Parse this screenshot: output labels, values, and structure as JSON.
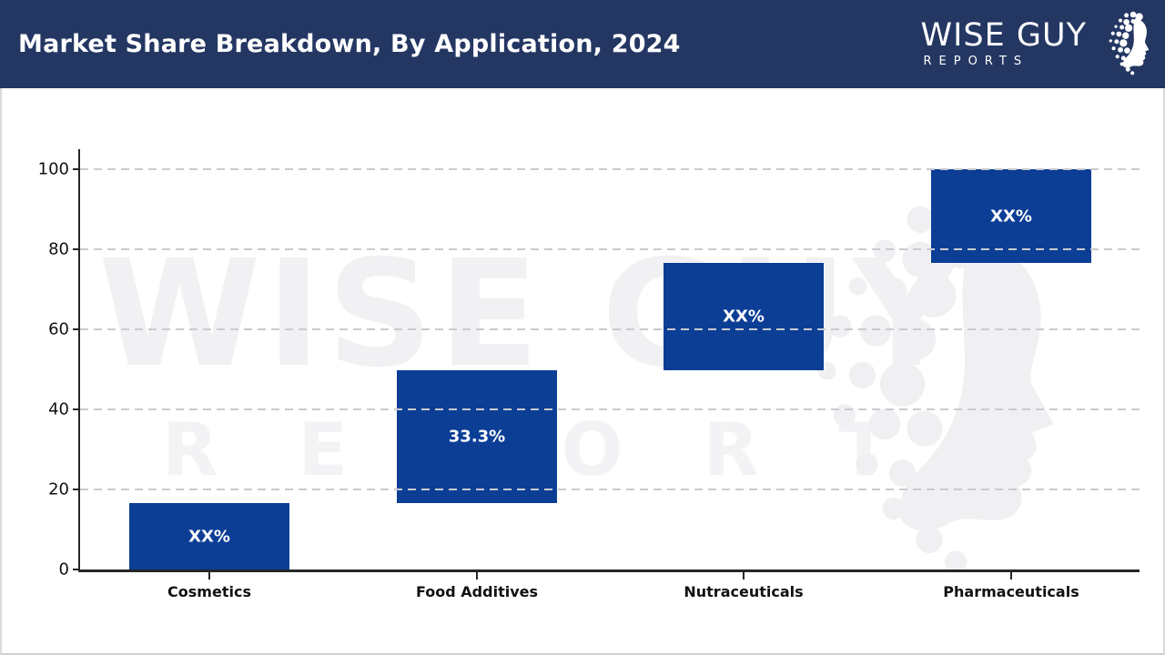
{
  "header": {
    "title": "Market Share Breakdown, By Application, 2024",
    "bg_color": "#243763",
    "logo": {
      "line1": "WISE GUY",
      "line2": "REPORTS"
    }
  },
  "watermark": {
    "line1": "WISE GUY",
    "line2": "R E P O R T S"
  },
  "chart_data": {
    "type": "bar",
    "subtype": "waterfall",
    "title": "Market Share Breakdown, By Application, 2024",
    "categories": [
      "Cosmetics",
      "Food Additives",
      "Nutraceuticals",
      "Pharmaceuticals"
    ],
    "bar_labels": [
      "XX%",
      "33.3%",
      "XX%",
      "XX%"
    ],
    "segment_values_pct": [
      16.5,
      33.3,
      26.7,
      23.5
    ],
    "bar_start": [
      0,
      16.5,
      49.8,
      76.5
    ],
    "bar_end": [
      16.5,
      49.8,
      76.5,
      100
    ],
    "xlabel": "",
    "ylabel": "",
    "ylim": [
      0,
      105
    ],
    "yticks": [
      0,
      20,
      40,
      60,
      80,
      100
    ],
    "grid": "horizontal-dashed",
    "legend": "none",
    "bar_color": "#0c3e96",
    "bar_label_color": "#ffffff",
    "axis_color": "#262626",
    "grid_color": "#c9cbce",
    "note": "Waterfall-style market share chart; masked values displayed as XX%"
  }
}
